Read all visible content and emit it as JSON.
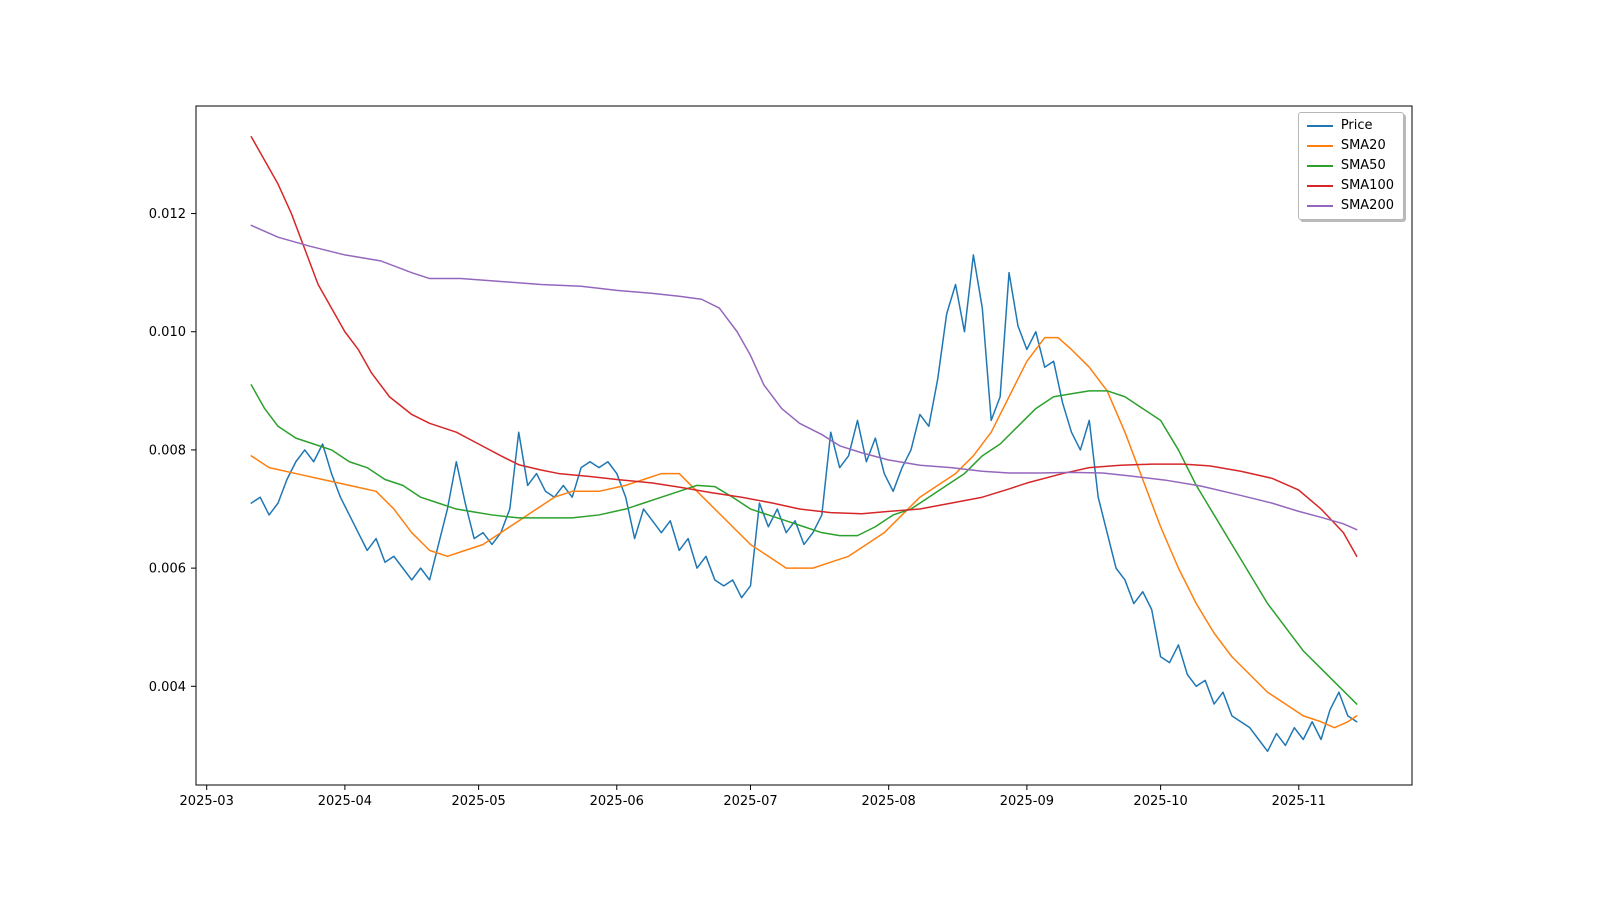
{
  "figure": {
    "background_color": "#ffffff",
    "spine_color": "#000000",
    "tick_color": "#000000",
    "tick_label_color": "#000000"
  },
  "legend": {
    "position": "upper right",
    "entries": [
      "Price",
      "SMA20",
      "SMA50",
      "SMA100",
      "SMA200"
    ]
  },
  "chart_data": {
    "type": "line",
    "title": "",
    "xlabel": "",
    "ylabel": "",
    "grid": false,
    "x_unit": "days since 2025-03-01",
    "xlim": [
      -2.4,
      270.4
    ],
    "ylim": [
      0.00233,
      0.01382
    ],
    "x_ticks": [
      {
        "value": 0,
        "label": "2025-03"
      },
      {
        "value": 31,
        "label": "2025-04"
      },
      {
        "value": 61,
        "label": "2025-05"
      },
      {
        "value": 92,
        "label": "2025-06"
      },
      {
        "value": 122,
        "label": "2025-07"
      },
      {
        "value": 153,
        "label": "2025-08"
      },
      {
        "value": 184,
        "label": "2025-09"
      },
      {
        "value": 214,
        "label": "2025-10"
      },
      {
        "value": 245,
        "label": "2025-11"
      }
    ],
    "y_ticks": [
      {
        "value": 0.004,
        "label": "0.004"
      },
      {
        "value": 0.006,
        "label": "0.006"
      },
      {
        "value": 0.008,
        "label": "0.008"
      },
      {
        "value": 0.01,
        "label": "0.010"
      },
      {
        "value": 0.012,
        "label": "0.012"
      }
    ],
    "series": [
      {
        "name": "Price",
        "color": "#1f77b4",
        "x_start": 10,
        "x_step": 2,
        "y": [
          0.0071,
          0.0072,
          0.0069,
          0.0071,
          0.0075,
          0.0078,
          0.008,
          0.0078,
          0.0081,
          0.0076,
          0.0072,
          0.0069,
          0.0066,
          0.0063,
          0.0065,
          0.0061,
          0.0062,
          0.006,
          0.0058,
          0.006,
          0.0058,
          0.0064,
          0.007,
          0.0078,
          0.0071,
          0.0065,
          0.0066,
          0.0064,
          0.0066,
          0.007,
          0.0083,
          0.0074,
          0.0076,
          0.0073,
          0.0072,
          0.0074,
          0.0072,
          0.0077,
          0.0078,
          0.0077,
          0.0078,
          0.0076,
          0.0072,
          0.0065,
          0.007,
          0.0068,
          0.0066,
          0.0068,
          0.0063,
          0.0065,
          0.006,
          0.0062,
          0.0058,
          0.0057,
          0.0058,
          0.0055,
          0.0057,
          0.0071,
          0.0067,
          0.007,
          0.0066,
          0.0068,
          0.0064,
          0.0066,
          0.0069,
          0.0083,
          0.0077,
          0.0079,
          0.0085,
          0.0078,
          0.0082,
          0.0076,
          0.0073,
          0.0077,
          0.008,
          0.0086,
          0.0084,
          0.0092,
          0.0103,
          0.0108,
          0.01,
          0.0113,
          0.0104,
          0.0085,
          0.0089,
          0.011,
          0.0101,
          0.0097,
          0.01,
          0.0094,
          0.0095,
          0.0088,
          0.0083,
          0.008,
          0.0085,
          0.0072,
          0.0066,
          0.006,
          0.0058,
          0.0054,
          0.0056,
          0.0053,
          0.0045,
          0.0044,
          0.0047,
          0.0042,
          0.004,
          0.0041,
          0.0037,
          0.0039,
          0.0035,
          0.0034,
          0.0033,
          0.0031,
          0.0029,
          0.0032,
          0.003,
          0.0033,
          0.0031,
          0.0034,
          0.0031,
          0.0036,
          0.0039,
          0.0035,
          0.0034
        ]
      },
      {
        "name": "SMA20",
        "color": "#ff7f0e",
        "points": [
          [
            10,
            0.0079
          ],
          [
            14,
            0.0077
          ],
          [
            20,
            0.0076
          ],
          [
            26,
            0.0075
          ],
          [
            32,
            0.0074
          ],
          [
            38,
            0.0073
          ],
          [
            42,
            0.007
          ],
          [
            46,
            0.0066
          ],
          [
            50,
            0.0063
          ],
          [
            54,
            0.0062
          ],
          [
            58,
            0.0063
          ],
          [
            62,
            0.0064
          ],
          [
            66,
            0.0066
          ],
          [
            70,
            0.0068
          ],
          [
            74,
            0.007
          ],
          [
            78,
            0.0072
          ],
          [
            82,
            0.0073
          ],
          [
            88,
            0.0073
          ],
          [
            94,
            0.0074
          ],
          [
            98,
            0.0075
          ],
          [
            102,
            0.0076
          ],
          [
            106,
            0.0076
          ],
          [
            110,
            0.0073
          ],
          [
            114,
            0.007
          ],
          [
            118,
            0.0067
          ],
          [
            122,
            0.0064
          ],
          [
            126,
            0.0062
          ],
          [
            130,
            0.006
          ],
          [
            136,
            0.006
          ],
          [
            140,
            0.0061
          ],
          [
            144,
            0.0062
          ],
          [
            148,
            0.0064
          ],
          [
            152,
            0.0066
          ],
          [
            156,
            0.0069
          ],
          [
            160,
            0.0072
          ],
          [
            164,
            0.0074
          ],
          [
            168,
            0.0076
          ],
          [
            172,
            0.0079
          ],
          [
            176,
            0.0083
          ],
          [
            180,
            0.0089
          ],
          [
            184,
            0.0095
          ],
          [
            188,
            0.0099
          ],
          [
            191,
            0.0099
          ],
          [
            194,
            0.0097
          ],
          [
            198,
            0.0094
          ],
          [
            202,
            0.009
          ],
          [
            206,
            0.0083
          ],
          [
            210,
            0.0075
          ],
          [
            214,
            0.0067
          ],
          [
            218,
            0.006
          ],
          [
            222,
            0.0054
          ],
          [
            226,
            0.0049
          ],
          [
            230,
            0.0045
          ],
          [
            234,
            0.0042
          ],
          [
            238,
            0.0039
          ],
          [
            242,
            0.0037
          ],
          [
            246,
            0.0035
          ],
          [
            250,
            0.0034
          ],
          [
            253,
            0.0033
          ],
          [
            256,
            0.0034
          ],
          [
            258,
            0.0035
          ]
        ]
      },
      {
        "name": "SMA50",
        "color": "#2ca02c",
        "points": [
          [
            10,
            0.0091
          ],
          [
            13,
            0.0087
          ],
          [
            16,
            0.0084
          ],
          [
            20,
            0.0082
          ],
          [
            24,
            0.0081
          ],
          [
            28,
            0.008
          ],
          [
            32,
            0.0078
          ],
          [
            36,
            0.0077
          ],
          [
            40,
            0.0075
          ],
          [
            44,
            0.0074
          ],
          [
            48,
            0.0072
          ],
          [
            52,
            0.0071
          ],
          [
            56,
            0.007
          ],
          [
            60,
            0.00695
          ],
          [
            64,
            0.0069
          ],
          [
            70,
            0.00685
          ],
          [
            76,
            0.00685
          ],
          [
            82,
            0.00685
          ],
          [
            88,
            0.0069
          ],
          [
            94,
            0.007
          ],
          [
            98,
            0.0071
          ],
          [
            102,
            0.0072
          ],
          [
            106,
            0.0073
          ],
          [
            110,
            0.0074
          ],
          [
            114,
            0.00738
          ],
          [
            118,
            0.0072
          ],
          [
            122,
            0.007
          ],
          [
            126,
            0.0069
          ],
          [
            130,
            0.0068
          ],
          [
            134,
            0.0067
          ],
          [
            138,
            0.0066
          ],
          [
            142,
            0.00655
          ],
          [
            146,
            0.00655
          ],
          [
            150,
            0.0067
          ],
          [
            154,
            0.0069
          ],
          [
            158,
            0.007
          ],
          [
            162,
            0.0072
          ],
          [
            166,
            0.0074
          ],
          [
            170,
            0.0076
          ],
          [
            174,
            0.0079
          ],
          [
            178,
            0.0081
          ],
          [
            182,
            0.0084
          ],
          [
            186,
            0.0087
          ],
          [
            190,
            0.0089
          ],
          [
            194,
            0.00895
          ],
          [
            198,
            0.009
          ],
          [
            202,
            0.009
          ],
          [
            206,
            0.0089
          ],
          [
            210,
            0.0087
          ],
          [
            214,
            0.0085
          ],
          [
            218,
            0.008
          ],
          [
            222,
            0.0074
          ],
          [
            226,
            0.0069
          ],
          [
            230,
            0.0064
          ],
          [
            234,
            0.0059
          ],
          [
            238,
            0.0054
          ],
          [
            242,
            0.005
          ],
          [
            246,
            0.0046
          ],
          [
            250,
            0.0043
          ],
          [
            254,
            0.004
          ],
          [
            258,
            0.0037
          ]
        ]
      },
      {
        "name": "SMA100",
        "color": "#d62728",
        "points": [
          [
            10,
            0.0133
          ],
          [
            13,
            0.0129
          ],
          [
            16,
            0.0125
          ],
          [
            19,
            0.012
          ],
          [
            22,
            0.0114
          ],
          [
            25,
            0.0108
          ],
          [
            28,
            0.0104
          ],
          [
            31,
            0.01
          ],
          [
            34,
            0.0097
          ],
          [
            37,
            0.0093
          ],
          [
            41,
            0.0089
          ],
          [
            46,
            0.0086
          ],
          [
            50,
            0.00845
          ],
          [
            56,
            0.0083
          ],
          [
            61,
            0.0081
          ],
          [
            66,
            0.0079
          ],
          [
            70,
            0.00775
          ],
          [
            75,
            0.00766
          ],
          [
            79,
            0.0076
          ],
          [
            86,
            0.00755
          ],
          [
            92,
            0.0075
          ],
          [
            100,
            0.00744
          ],
          [
            106,
            0.00737
          ],
          [
            113,
            0.00728
          ],
          [
            120,
            0.0072
          ],
          [
            127,
            0.0071
          ],
          [
            133,
            0.007
          ],
          [
            140,
            0.00694
          ],
          [
            147,
            0.00692
          ],
          [
            153,
            0.00696
          ],
          [
            160,
            0.007
          ],
          [
            167,
            0.0071
          ],
          [
            174,
            0.0072
          ],
          [
            180,
            0.00734
          ],
          [
            184,
            0.00744
          ],
          [
            192,
            0.0076
          ],
          [
            198,
            0.0077
          ],
          [
            205,
            0.00774
          ],
          [
            212,
            0.00776
          ],
          [
            219,
            0.00776
          ],
          [
            225,
            0.00773
          ],
          [
            232,
            0.00764
          ],
          [
            239,
            0.00752
          ],
          [
            245,
            0.00732
          ],
          [
            250,
            0.007
          ],
          [
            255,
            0.0066
          ],
          [
            258,
            0.0062
          ]
        ]
      },
      {
        "name": "SMA200",
        "color": "#9467bd",
        "points": [
          [
            10,
            0.0118
          ],
          [
            16,
            0.0116
          ],
          [
            23,
            0.01145
          ],
          [
            31,
            0.0113
          ],
          [
            39,
            0.0112
          ],
          [
            46,
            0.011
          ],
          [
            50,
            0.0109
          ],
          [
            57,
            0.0109
          ],
          [
            66,
            0.01085
          ],
          [
            75,
            0.0108
          ],
          [
            84,
            0.01077
          ],
          [
            92,
            0.0107
          ],
          [
            100,
            0.01065
          ],
          [
            106,
            0.0106
          ],
          [
            111,
            0.01055
          ],
          [
            115,
            0.0104
          ],
          [
            119,
            0.01
          ],
          [
            122,
            0.0096
          ],
          [
            125,
            0.0091
          ],
          [
            129,
            0.0087
          ],
          [
            133,
            0.00845
          ],
          [
            138,
            0.00826
          ],
          [
            142,
            0.00807
          ],
          [
            147,
            0.00795
          ],
          [
            153,
            0.00783
          ],
          [
            160,
            0.00774
          ],
          [
            167,
            0.0077
          ],
          [
            174,
            0.00764
          ],
          [
            180,
            0.00761
          ],
          [
            187,
            0.00761
          ],
          [
            194,
            0.00762
          ],
          [
            201,
            0.00761
          ],
          [
            207,
            0.00756
          ],
          [
            215,
            0.00749
          ],
          [
            223,
            0.00739
          ],
          [
            232,
            0.00723
          ],
          [
            239,
            0.0071
          ],
          [
            245,
            0.00696
          ],
          [
            250,
            0.00686
          ],
          [
            255,
            0.00675
          ],
          [
            258,
            0.00665
          ]
        ]
      }
    ]
  }
}
